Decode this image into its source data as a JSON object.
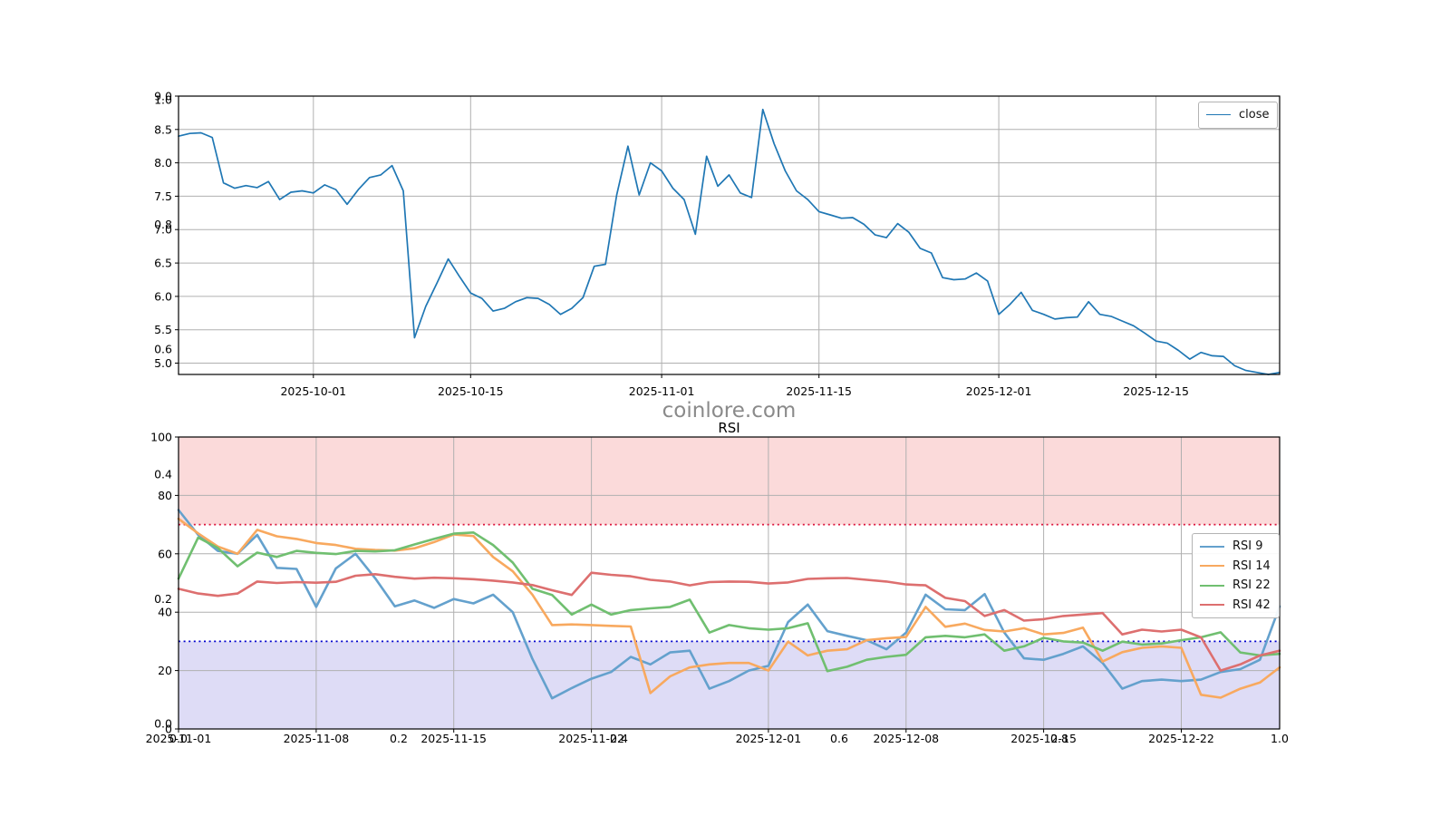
{
  "watermark": "coinlore.com",
  "colors": {
    "close": "#1f77b4",
    "rsi9": "#64a1cd",
    "rsi14": "#f8a95f",
    "rsi22": "#70bf70",
    "rsi42": "#dd6f6f",
    "overbought_band": "#fbdada",
    "oversold_band": "#dedcf6",
    "overbought_line": "#dc143c",
    "oversold_line": "#0000cd",
    "grid": "#b0b0b0",
    "spine": "#000000",
    "watermark": "#8a8a8a"
  },
  "artifact_axis": {
    "x": [
      {
        "f": 0.0,
        "label": "0.0"
      },
      {
        "f": 0.2,
        "label": "0.2"
      },
      {
        "f": 0.4,
        "label": "0.4"
      },
      {
        "f": 0.6,
        "label": "0.6"
      },
      {
        "f": 0.8,
        "label": "0.8"
      },
      {
        "f": 1.0,
        "label": "1.0"
      }
    ],
    "y": [
      {
        "f": 0.0,
        "label": "0.0"
      },
      {
        "f": 0.2,
        "label": "0.2"
      },
      {
        "f": 0.4,
        "label": "0.4"
      },
      {
        "f": 0.6,
        "label": "0.6"
      },
      {
        "f": 0.8,
        "label": "0.8"
      },
      {
        "f": 1.0,
        "label": "1.0"
      }
    ]
  },
  "chart_data": [
    {
      "id": "price",
      "type": "line",
      "title": "",
      "ylim": [
        4.83,
        9.0
      ],
      "grid": true,
      "legend_position": "upper right",
      "yticks": [
        {
          "v": 5.0,
          "label": "5.0"
        },
        {
          "v": 5.5,
          "label": "5.5"
        },
        {
          "v": 6.0,
          "label": "6.0"
        },
        {
          "v": 6.5,
          "label": "6.5"
        },
        {
          "v": 7.0,
          "label": "7.0"
        },
        {
          "v": 7.5,
          "label": "7.5"
        },
        {
          "v": 8.0,
          "label": "8.0"
        },
        {
          "v": 8.5,
          "label": "8.5"
        },
        {
          "v": 9.0,
          "label": "9.0"
        }
      ],
      "xticks": [
        {
          "i": 12,
          "label": "2025-10-01"
        },
        {
          "i": 26,
          "label": "2025-10-15"
        },
        {
          "i": 43,
          "label": "2025-11-01"
        },
        {
          "i": 57,
          "label": "2025-11-15"
        },
        {
          "i": 73,
          "label": "2025-12-01"
        },
        {
          "i": 87,
          "label": "2025-12-15"
        }
      ],
      "series": [
        {
          "name": "close",
          "color": "#1f77b4",
          "width": 1.7,
          "values": [
            8.4,
            8.44,
            8.45,
            8.38,
            7.7,
            7.62,
            7.66,
            7.63,
            7.72,
            7.45,
            7.56,
            7.58,
            7.55,
            7.67,
            7.6,
            7.38,
            7.6,
            7.78,
            7.82,
            7.96,
            7.58,
            5.38,
            5.85,
            6.2,
            6.56,
            6.3,
            6.05,
            5.97,
            5.78,
            5.82,
            5.92,
            5.98,
            5.97,
            5.88,
            5.73,
            5.82,
            5.98,
            6.45,
            6.48,
            7.52,
            8.25,
            7.52,
            8.0,
            7.88,
            7.62,
            7.45,
            6.93,
            8.1,
            7.65,
            7.82,
            7.55,
            7.48,
            8.8,
            8.29,
            7.88,
            7.58,
            7.45,
            7.27,
            7.22,
            7.17,
            7.18,
            7.08,
            6.92,
            6.88,
            7.09,
            6.96,
            6.72,
            6.65,
            6.28,
            6.25,
            6.26,
            6.35,
            6.23,
            5.73,
            5.88,
            6.06,
            5.79,
            5.73,
            5.66,
            5.68,
            5.69,
            5.92,
            5.73,
            5.7,
            5.63,
            5.56,
            5.45,
            5.33,
            5.3,
            5.19,
            5.06,
            5.16,
            5.11,
            5.1,
            4.96,
            4.89,
            4.86,
            4.83,
            4.86
          ]
        }
      ]
    },
    {
      "id": "rsi",
      "type": "line",
      "title": "RSI",
      "ylim": [
        0,
        100
      ],
      "grid": true,
      "legend_position": "right",
      "bands": [
        {
          "name": "overbought-band",
          "from": 70,
          "to": 100,
          "color": "#fbdada"
        },
        {
          "name": "oversold-band",
          "from": 0,
          "to": 30,
          "color": "#dedcf6"
        }
      ],
      "hlines": [
        {
          "name": "overbought-line",
          "value": 70,
          "color": "#dc143c"
        },
        {
          "name": "oversold-line",
          "value": 30,
          "color": "#0000cd"
        }
      ],
      "yticks": [
        {
          "v": 0,
          "label": "0"
        },
        {
          "v": 20,
          "label": "20"
        },
        {
          "v": 40,
          "label": "40"
        },
        {
          "v": 60,
          "label": "60"
        },
        {
          "v": 80,
          "label": "80"
        },
        {
          "v": 100,
          "label": "100"
        }
      ],
      "xticks": [
        {
          "i": 0,
          "label": "2025-11-01"
        },
        {
          "i": 7,
          "label": "2025-11-08"
        },
        {
          "i": 14,
          "label": "2025-11-15"
        },
        {
          "i": 21,
          "label": "2025-11-22"
        },
        {
          "i": 30,
          "label": "2025-12-01"
        },
        {
          "i": 37,
          "label": "2025-12-08"
        },
        {
          "i": 44,
          "label": "2025-12-15"
        },
        {
          "i": 51,
          "label": "2025-12-22"
        }
      ],
      "series": [
        {
          "name": "RSI 9",
          "color": "#64a1cd",
          "width": 2.6,
          "values": [
            75,
            66.5,
            61,
            60,
            66.5,
            55.2,
            54.8,
            41.8,
            55,
            60,
            51.6,
            42,
            44,
            41.5,
            44.5,
            43,
            46,
            40,
            24,
            10.5,
            14,
            17.2,
            19.5,
            24.7,
            22.1,
            26.2,
            26.8,
            13.8,
            16.4,
            20,
            21.6,
            36.6,
            42.6,
            33.5,
            31.9,
            30.4,
            27.3,
            33,
            46,
            41,
            40.7,
            46.2,
            33,
            24.2,
            23.7,
            25.7,
            28.3,
            22.6,
            13.8,
            16.4,
            16.9,
            16.4,
            16.9,
            19.5,
            20.5,
            23.7,
            42
          ]
        },
        {
          "name": "RSI 14",
          "color": "#f8a95f",
          "width": 2.6,
          "values": [
            72,
            67,
            62.5,
            60,
            68.2,
            66,
            65.1,
            63.7,
            63,
            61.7,
            61.3,
            61.1,
            61.9,
            64,
            66.6,
            66.1,
            58.9,
            54,
            46,
            35.6,
            35.8,
            35.6,
            35.3,
            35.1,
            12.3,
            18,
            21.1,
            22.1,
            22.6,
            22.6,
            20,
            29.9,
            25.2,
            26.8,
            27.3,
            30.4,
            31.1,
            31.5,
            41.8,
            35,
            36.1,
            33.9,
            33.4,
            34.5,
            32.4,
            32.9,
            34.7,
            23.1,
            26.3,
            27.8,
            28.3,
            27.8,
            11.7,
            10.7,
            13.8,
            15.9,
            21.1
          ]
        },
        {
          "name": "RSI 22",
          "color": "#70bf70",
          "width": 2.6,
          "values": [
            51.5,
            65.6,
            62,
            55.7,
            60.4,
            58.9,
            61,
            60.3,
            59.9,
            61,
            60.8,
            61.2,
            63.2,
            65.1,
            66.9,
            67.3,
            63,
            57,
            48,
            45.9,
            39.2,
            42.6,
            39.2,
            40.7,
            41.3,
            41.8,
            44.3,
            33,
            35.6,
            34.5,
            34,
            34.5,
            36.2,
            19.8,
            21.3,
            23.7,
            24.7,
            25.4,
            31.4,
            31.9,
            31.4,
            32.4,
            26.8,
            28.3,
            31.2,
            30,
            29.6,
            26.8,
            29.9,
            28.9,
            29.3,
            30.4,
            31.4,
            33.1,
            26.2,
            25.2,
            25.7
          ]
        },
        {
          "name": "RSI 42",
          "color": "#dd6f6f",
          "width": 2.6,
          "values": [
            48,
            46.4,
            45.6,
            46.4,
            50.5,
            50,
            50.3,
            50.1,
            50.4,
            52.5,
            53,
            52.1,
            51.5,
            51.8,
            51.6,
            51.3,
            50.8,
            50.2,
            49.3,
            47.5,
            45.9,
            53.5,
            52.8,
            52.3,
            51.1,
            50.5,
            49.2,
            50.3,
            50.5,
            50.4,
            49.8,
            50.2,
            51.4,
            51.6,
            51.7,
            51.1,
            50.5,
            49.5,
            49.2,
            44.9,
            43.8,
            38.7,
            40.7,
            37.1,
            37.6,
            38.7,
            39.2,
            39.7,
            32.4,
            34,
            33.4,
            34,
            31.4,
            20,
            22.1,
            25.2,
            26.8
          ]
        }
      ]
    }
  ]
}
